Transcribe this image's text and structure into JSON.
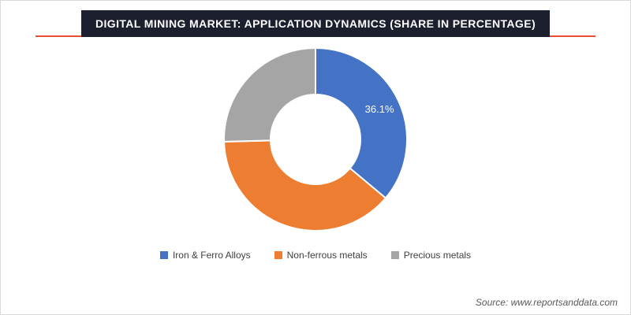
{
  "chart_data": {
    "type": "pie",
    "donut": true,
    "title": "DIGITAL MINING MARKET: APPLICATION DYNAMICS (SHARE IN PERCENTAGE)",
    "legend_position": "bottom",
    "start_angle_deg": 0,
    "direction": "clockwise",
    "slices": [
      {
        "label": "Iron & Ferro Alloys",
        "value": 36.1,
        "data_label": "36.1%",
        "color": "#4472C4"
      },
      {
        "label": "Non-ferrous metals",
        "value": 38.5,
        "data_label": "",
        "color": "#ED7D31"
      },
      {
        "label": "Precious metals",
        "value": 25.4,
        "data_label": "",
        "color": "#A5A5A5"
      }
    ]
  },
  "footer": {
    "source": "Source: www.reportsanddata.com"
  },
  "colors": {
    "title_bg": "#1B1F2E",
    "accent_line": "#E8502F",
    "source_text": "#595959",
    "slice_label_text": "#FFFFFF",
    "frame_border": "#D9D9D9"
  }
}
